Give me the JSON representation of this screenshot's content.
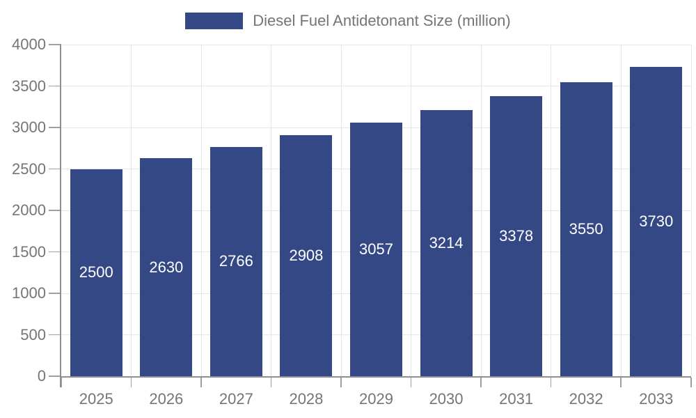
{
  "chart_data": {
    "type": "bar",
    "title": "Diesel Fuel Antidetonant Size (million)",
    "categories": [
      "2025",
      "2026",
      "2027",
      "2028",
      "2029",
      "2030",
      "2031",
      "2032",
      "2033"
    ],
    "values": [
      2500,
      2630,
      2766,
      2908,
      3057,
      3214,
      3378,
      3550,
      3730
    ],
    "xlabel": "",
    "ylabel": "",
    "ylim": [
      0,
      4000
    ],
    "yticks": [
      0,
      500,
      1000,
      1500,
      2000,
      2500,
      3000,
      3500,
      4000
    ],
    "grid": "horizontal-and-vertical",
    "legend_position": "top-center",
    "value_label_position": "inside-middle",
    "colors": {
      "bar": "#354886",
      "value_label": "#ffffff",
      "axis_line": "#8f8f8f",
      "tick_mark": "#9f9f9f",
      "grid_line": "#e6e6e6",
      "tick_label": "#757575",
      "legend_text": "#757575",
      "background": "#ffffff"
    }
  }
}
